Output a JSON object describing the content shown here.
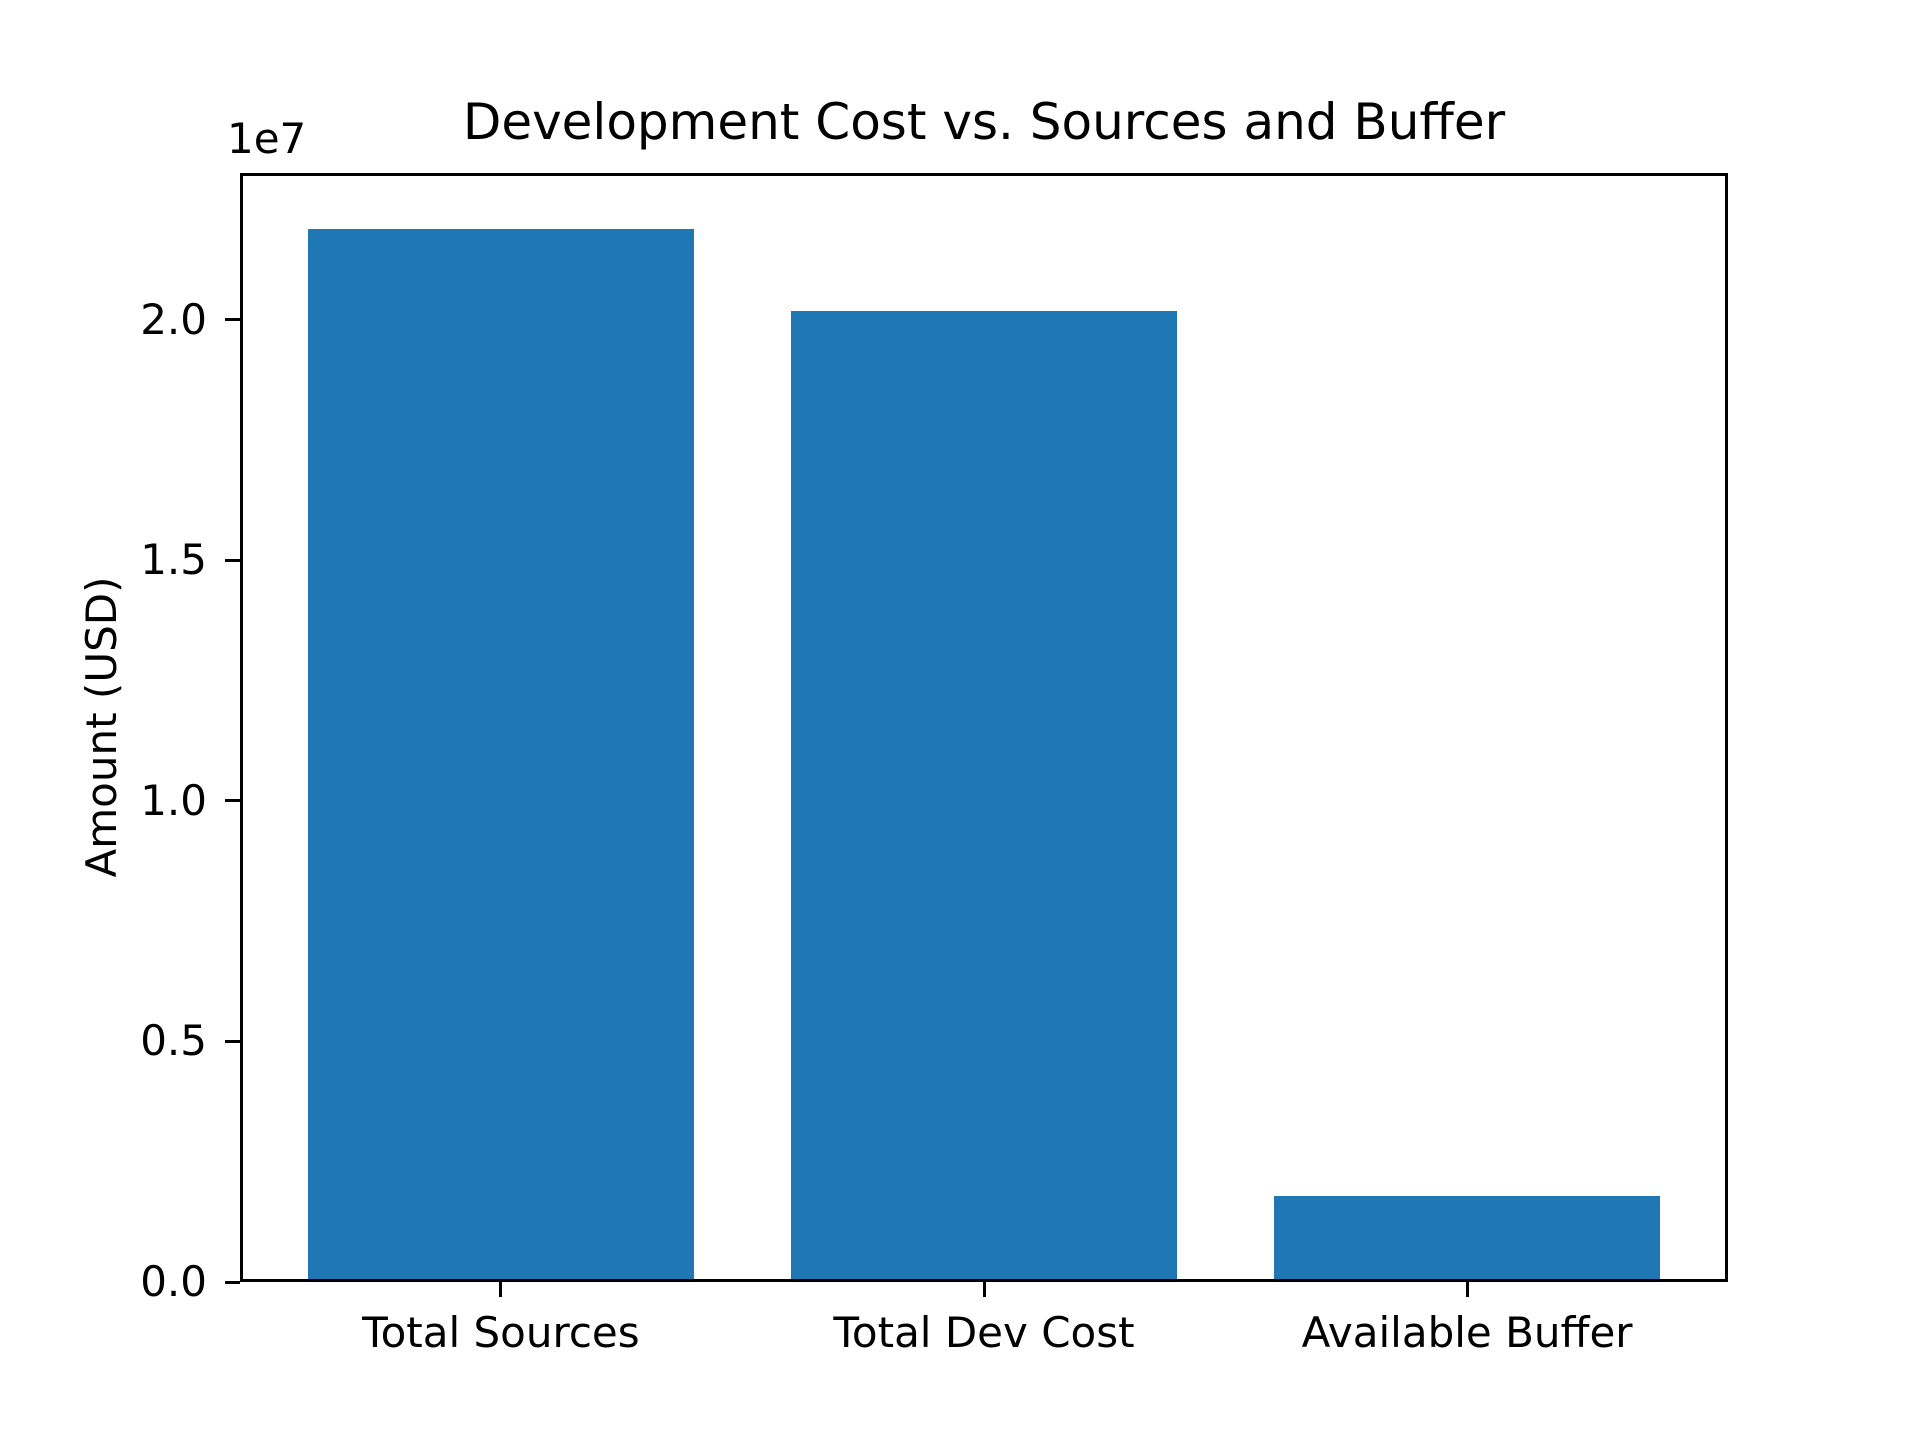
{
  "chart_data": {
    "type": "bar",
    "title": "Development Cost vs. Sources and Buffer",
    "xlabel": "",
    "ylabel": "Amount (USD)",
    "offset_text": "1e7",
    "categories": [
      "Total Sources",
      "Total Dev Cost",
      "Available Buffer"
    ],
    "values": [
      21950000,
      20225000,
      1725000
    ],
    "bar_color": "#1f77b4",
    "ylim": [
      0,
      23047500
    ],
    "yticks": [
      0,
      5000000,
      10000000,
      15000000,
      20000000
    ],
    "ytick_labels": [
      "0.0",
      "0.5",
      "1.0",
      "1.5",
      "2.0"
    ],
    "grid": false,
    "legend": null,
    "background_color": "#ffffff",
    "axis_color": "#000000"
  }
}
